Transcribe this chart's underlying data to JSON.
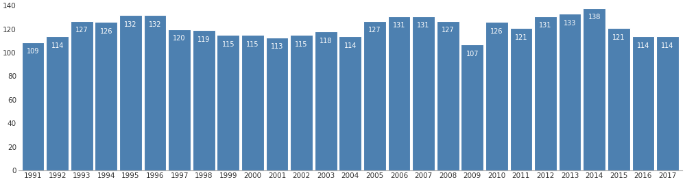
{
  "years": [
    1991,
    1992,
    1993,
    1994,
    1995,
    1996,
    1997,
    1998,
    1999,
    2000,
    2001,
    2002,
    2003,
    2004,
    2005,
    2006,
    2007,
    2008,
    2009,
    2010,
    2011,
    2012,
    2013,
    2014,
    2015,
    2016,
    2017
  ],
  "values": [
    109,
    114,
    127,
    126,
    132,
    132,
    120,
    119,
    115,
    115,
    113,
    115,
    118,
    114,
    127,
    131,
    131,
    127,
    107,
    126,
    121,
    131,
    133,
    138,
    121,
    114,
    114
  ],
  "bar_color": "#4d80b0",
  "label_color": "#ffffff",
  "label_fontsize": 7.0,
  "tick_fontsize": 7.5,
  "ylim": [
    0,
    140
  ],
  "yticks": [
    0,
    20,
    40,
    60,
    80,
    100,
    120,
    140
  ],
  "background_color": "#ffffff",
  "bar_edge_color": "#ffffff"
}
